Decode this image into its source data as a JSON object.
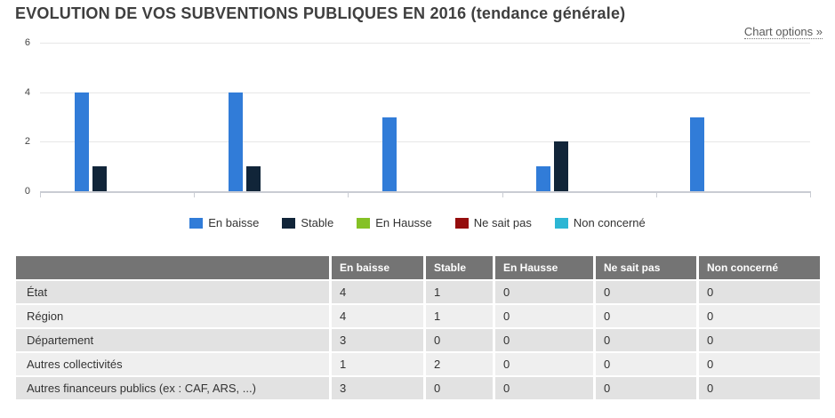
{
  "title": "EVOLUTION DE VOS SUBVENTIONS PUBLIQUES EN 2016 (tendance générale)",
  "chart_options_label": "Chart options »",
  "chart_data": {
    "type": "bar",
    "title": "EVOLUTION DE VOS SUBVENTIONS PUBLIQUES EN 2016 (tendance générale)",
    "categories": [
      "État",
      "Région",
      "Département",
      "Autres collectivités",
      "Autres financeurs publics (ex : CAF, ARS, ...)"
    ],
    "series": [
      {
        "name": "En baisse",
        "color": "#317cd8",
        "values": [
          4,
          4,
          3,
          1,
          3
        ]
      },
      {
        "name": "Stable",
        "color": "#112539",
        "values": [
          1,
          1,
          0,
          2,
          0
        ]
      },
      {
        "name": "En Hausse",
        "color": "#85c125",
        "values": [
          0,
          0,
          0,
          0,
          0
        ]
      },
      {
        "name": "Ne sait pas",
        "color": "#950d0d",
        "values": [
          0,
          0,
          0,
          0,
          0
        ]
      },
      {
        "name": "Non concerné",
        "color": "#2cb6d4",
        "values": [
          0,
          0,
          0,
          0,
          0
        ]
      }
    ],
    "xlabel": "",
    "ylabel": "",
    "ylim": [
      0,
      6
    ],
    "yticks": [
      0,
      2,
      4,
      6
    ],
    "grid": true,
    "legend_position": "bottom",
    "x_category_labels_hidden": true
  },
  "table": {
    "columns": [
      "",
      "En baisse",
      "Stable",
      "En Hausse",
      "Ne sait pas",
      "Non concerné"
    ],
    "rows": [
      {
        "label": "État",
        "values": [
          "4",
          "1",
          "0",
          "0",
          "0"
        ]
      },
      {
        "label": "Région",
        "values": [
          "4",
          "1",
          "0",
          "0",
          "0"
        ]
      },
      {
        "label": "Département",
        "values": [
          "3",
          "0",
          "0",
          "0",
          "0"
        ]
      },
      {
        "label": "Autres collectivités",
        "values": [
          "1",
          "2",
          "0",
          "0",
          "0"
        ]
      },
      {
        "label": "Autres financeurs publics (ex : CAF, ARS, ...)",
        "values": [
          "3",
          "0",
          "0",
          "0",
          "0"
        ]
      }
    ]
  }
}
